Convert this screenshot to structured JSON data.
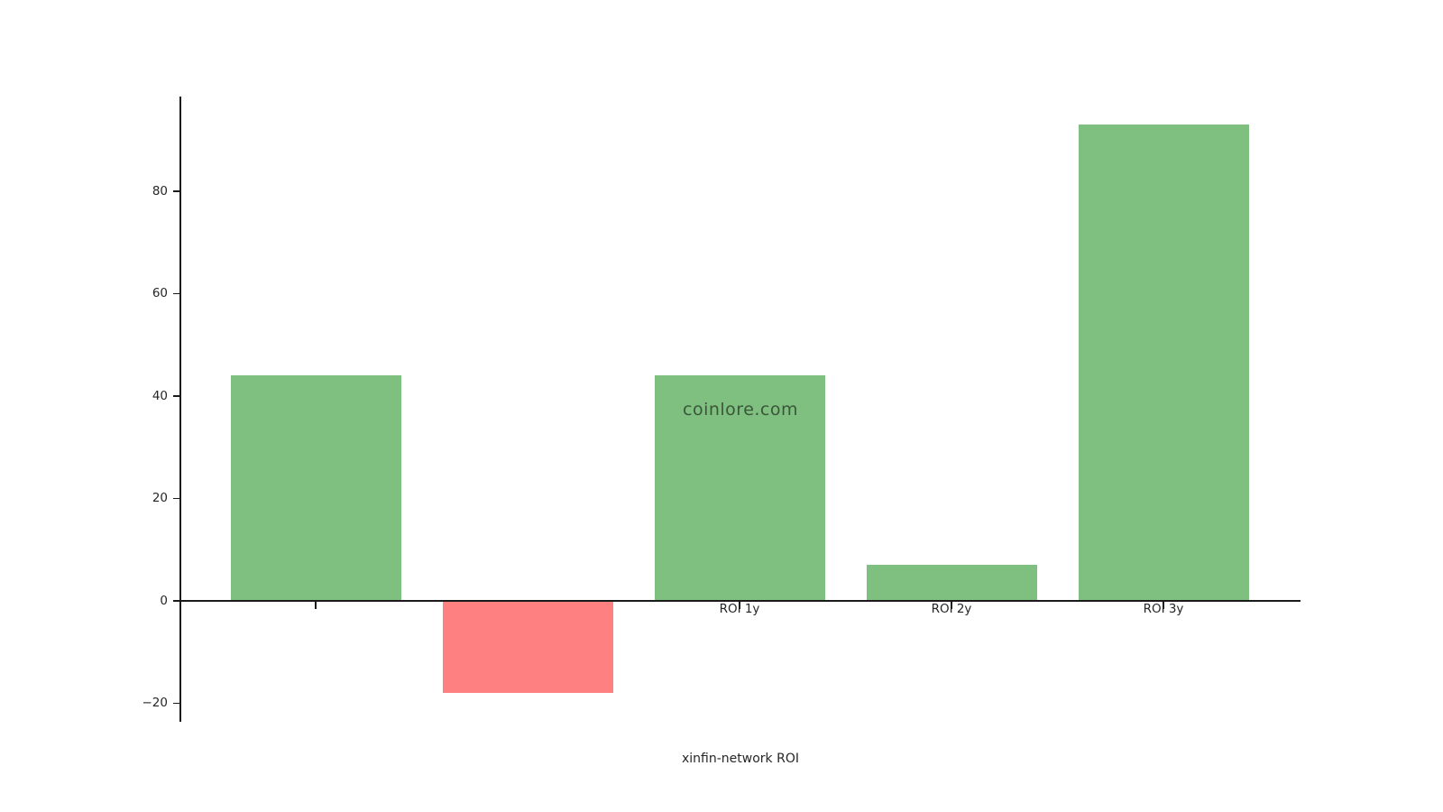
{
  "chart_data": {
    "type": "bar",
    "title": "xinfin-network ROI",
    "watermark": "coinlore.com",
    "categories": [
      "",
      "",
      "ROI 1y",
      "ROI 2y",
      "ROI 3y"
    ],
    "values": [
      44,
      -18,
      44,
      7,
      93
    ],
    "colors": [
      "#7fbf7f",
      "#ff8080",
      "#7fbf7f",
      "#7fbf7f",
      "#7fbf7f"
    ],
    "positive_color": "#7fbf7f",
    "negative_color": "#ff8080",
    "yticks": [
      {
        "value": 80,
        "label": "80"
      },
      {
        "value": 60,
        "label": "60"
      },
      {
        "value": 40,
        "label": "40"
      },
      {
        "value": 20,
        "label": "20"
      },
      {
        "value": 0,
        "label": "0"
      },
      {
        "value": -20,
        "label": "−20"
      }
    ],
    "ylim": [
      -23.6,
      98.5
    ],
    "xlabel": "xinfin-network ROI",
    "ylabel": "",
    "grid": false,
    "legend_position": "none",
    "axis_color": "#1a1a1a",
    "tick_text_color": "#262626",
    "watermark_color": "rgba(0,0,0,0.55)"
  }
}
